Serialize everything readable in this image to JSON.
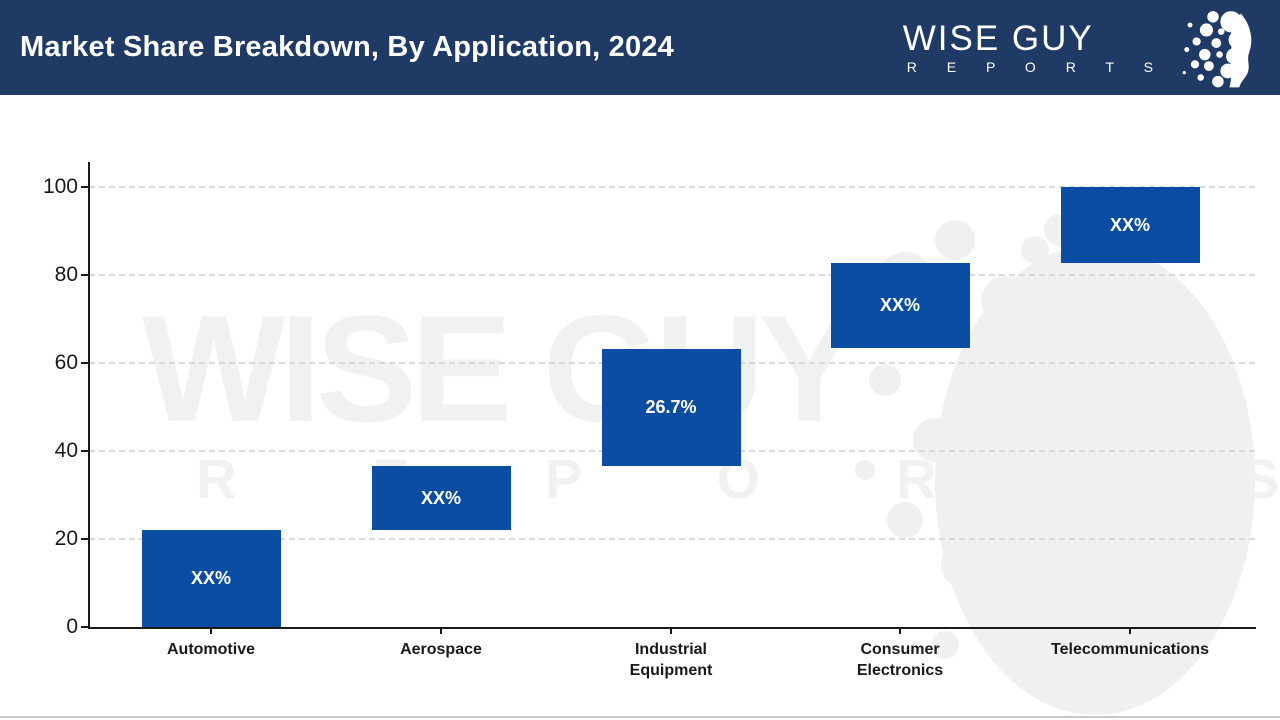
{
  "header": {
    "title": "Market Share Breakdown, By Application, 2024",
    "logo_line1": "WISE GUY",
    "logo_line2": "R E P O R T S"
  },
  "watermark": {
    "line1": "WISE GUY",
    "line2": "R E P O R T S"
  },
  "colors": {
    "header_bg": "#203a66",
    "bar": "#0b4da2",
    "gridline": "#d9d9d9",
    "axis": "#1a1a1a",
    "bar_label": "#ffffff",
    "watermark": "#f1f1f1",
    "bottom_line": "#c9c9c9"
  },
  "chart_data": {
    "type": "bar",
    "subtype": "waterfall-floating-bars",
    "title": "Market Share Breakdown, By Application, 2024",
    "categories": [
      [
        "Automotive"
      ],
      [
        "Aerospace"
      ],
      [
        "Industrial",
        "Equipment"
      ],
      [
        "Consumer",
        "Electronics"
      ],
      [
        "Telecommunications"
      ]
    ],
    "bars": [
      {
        "category": "Automotive",
        "start": 0,
        "end": 22,
        "label": "XX%"
      },
      {
        "category": "Aerospace",
        "start": 22,
        "end": 36.5,
        "label": "XX%"
      },
      {
        "category": "Industrial Equipment",
        "start": 36.5,
        "end": 63.2,
        "label": "26.7%"
      },
      {
        "category": "Consumer Electronics",
        "start": 63.3,
        "end": 82.7,
        "label": "XX%"
      },
      {
        "category": "Telecommunications",
        "start": 82.7,
        "end": 100,
        "label": "XX%"
      }
    ],
    "yticks": [
      0,
      20,
      40,
      60,
      80,
      100
    ],
    "ylim": [
      0,
      100
    ],
    "xlabel": "",
    "ylabel": "",
    "grid": "horizontal-dashed",
    "legend": "none"
  }
}
